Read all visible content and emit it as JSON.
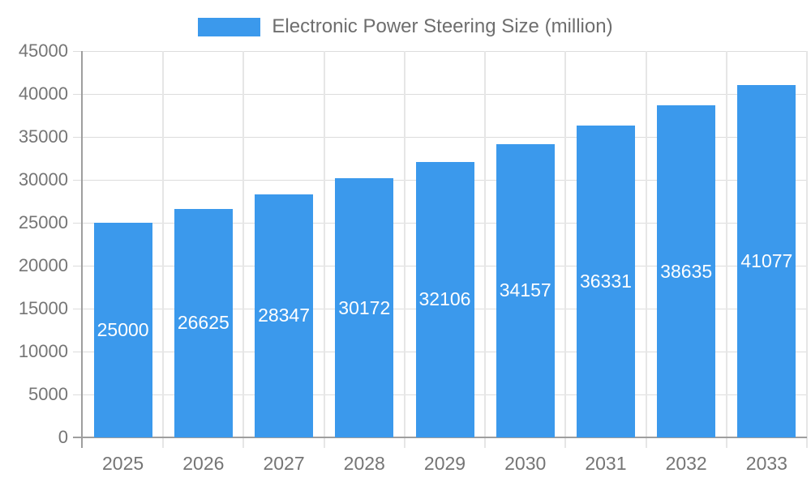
{
  "legend": {
    "label": "Electronic Power Steering Size (million)"
  },
  "chart_data": {
    "type": "bar",
    "title": "Electronic Power Steering Size (million)",
    "categories": [
      "2025",
      "2026",
      "2027",
      "2028",
      "2029",
      "2030",
      "2031",
      "2032",
      "2033"
    ],
    "values": [
      25000,
      26625,
      28347,
      30172,
      32106,
      34157,
      36331,
      38635,
      41077
    ],
    "xlabel": "",
    "ylabel": "",
    "ylim": [
      0,
      45000
    ],
    "ytick_step": 5000,
    "yticks": [
      0,
      5000,
      10000,
      15000,
      20000,
      25000,
      30000,
      35000,
      40000,
      45000
    ],
    "grid": true,
    "legend_position": "top",
    "value_labels": "inside-center",
    "colors": {
      "bar": "#3b99ec",
      "value_label": "#ffffff",
      "axis_label": "#757575",
      "legend_label": "#6e6e6e",
      "gridline": "#dcdcdc",
      "vertical_gridline": "#e6e6e6",
      "axis_line": "#9e9e9e"
    }
  }
}
